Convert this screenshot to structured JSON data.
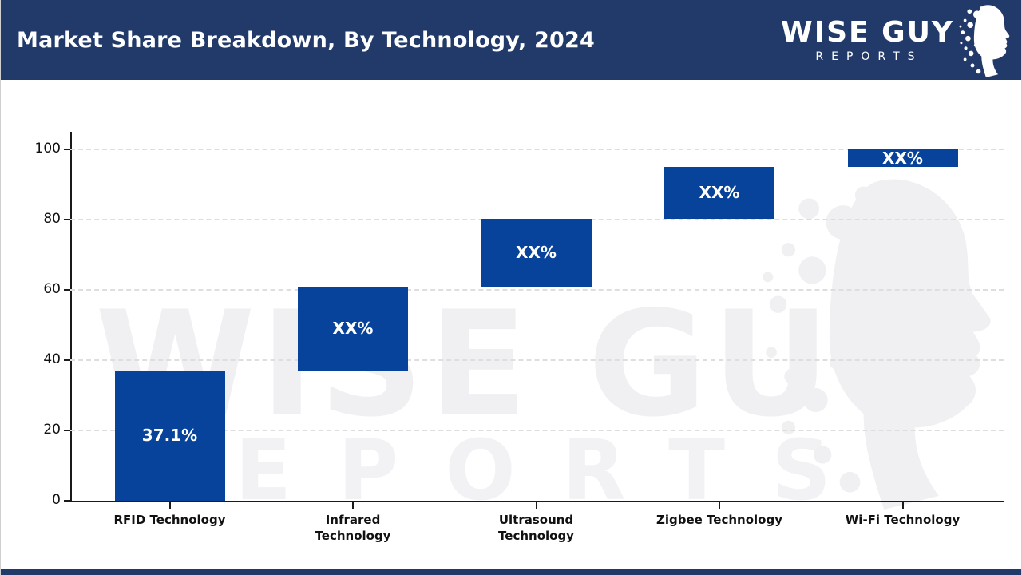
{
  "header": {
    "title": "Market Share Breakdown, By Technology, 2024",
    "background_color": "#213A69",
    "logo": {
      "line1": "WISE GUY",
      "line2": "REPORTS"
    }
  },
  "watermark": {
    "line1": "WISE GUY",
    "line2": "REPORTS",
    "color": "#F0F0F3"
  },
  "chart_data": {
    "type": "bar",
    "subtype": "waterfall",
    "title": "Market Share Breakdown, By Technology, 2024",
    "xlabel": "",
    "ylabel": "",
    "ylim": [
      0,
      105
    ],
    "grid": "horizontal-dashed",
    "legend": "none",
    "bar_color": "#07439B",
    "y_ticks": [
      0,
      20,
      40,
      60,
      80,
      100
    ],
    "categories": [
      "RFID Technology",
      "Infrared\nTechnology",
      "Ultrasound\nTechnology",
      "Zigbee Technology",
      "Wi-Fi Technology"
    ],
    "segments": [
      {
        "category": "RFID Technology",
        "start": 0,
        "end": 37.1,
        "label": "37.1%"
      },
      {
        "category": "Infrared\nTechnology",
        "start": 37.1,
        "end": 61.0,
        "label": "XX%"
      },
      {
        "category": "Ultrasound\nTechnology",
        "start": 61.0,
        "end": 80.3,
        "label": "XX%"
      },
      {
        "category": "Zigbee Technology",
        "start": 80.3,
        "end": 95.0,
        "label": "XX%"
      },
      {
        "category": "Wi-Fi Technology",
        "start": 95.0,
        "end": 100.0,
        "label": "XX%"
      }
    ]
  }
}
